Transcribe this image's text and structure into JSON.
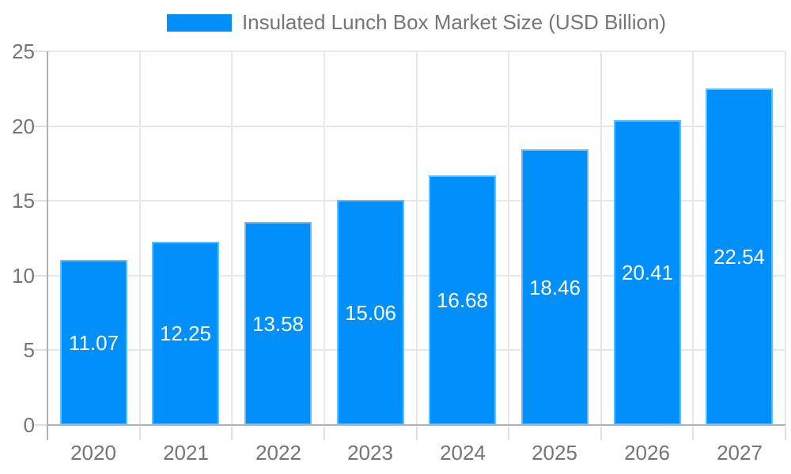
{
  "chart_data": {
    "type": "bar",
    "title": "Insulated Lunch Box Market Size (USD Billion)",
    "legend": "Insulated Lunch Box Market Size (USD Billion)",
    "legend_position": "top",
    "categories": [
      "2020",
      "2021",
      "2022",
      "2023",
      "2024",
      "2025",
      "2026",
      "2027"
    ],
    "values": [
      11.07,
      12.25,
      13.58,
      15.06,
      16.68,
      18.46,
      20.41,
      22.54
    ],
    "value_labels": [
      "11.07",
      "12.25",
      "13.58",
      "15.06",
      "16.68",
      "18.46",
      "20.41",
      "22.54"
    ],
    "xlabel": "",
    "ylabel": "",
    "ylim": [
      0,
      25
    ],
    "y_ticks": [
      0,
      5,
      10,
      15,
      20,
      25
    ],
    "grid": true,
    "colors": {
      "bar": "#008FFB",
      "grid": "#e7e7e7",
      "tick": "#e0e0e0",
      "axis": "#b1b1b1",
      "label": "#757575",
      "value_text": "#ffffff",
      "background": "#ffffff"
    }
  }
}
